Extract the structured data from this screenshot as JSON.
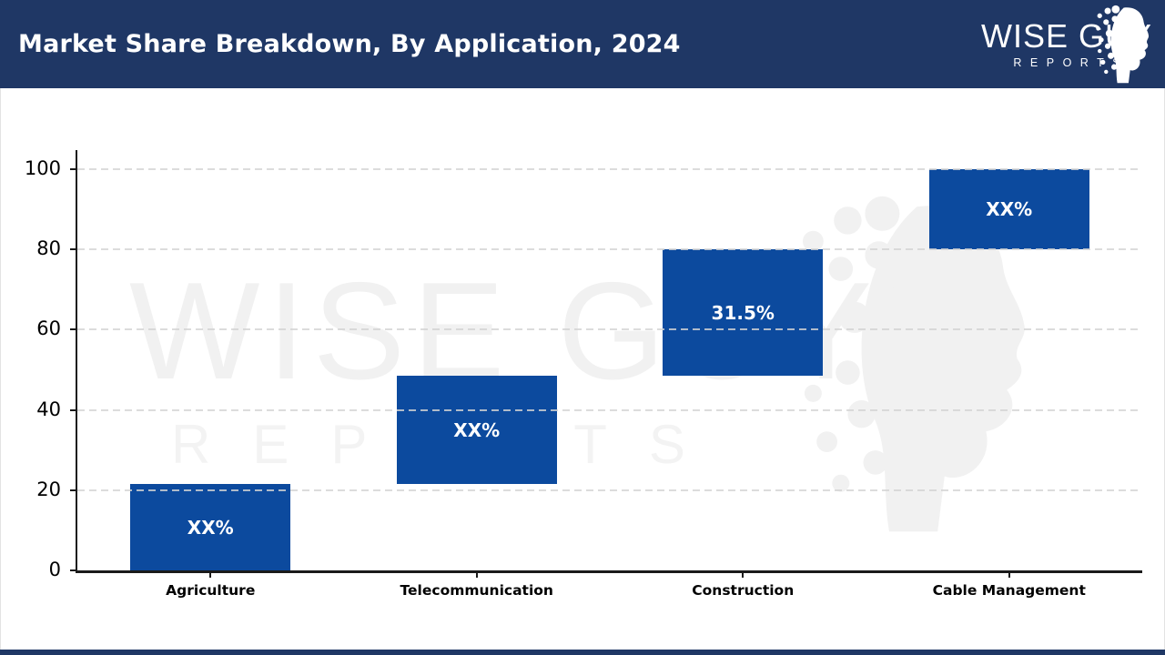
{
  "header": {
    "title": "Market Share Breakdown, By Application, 2024",
    "logo": {
      "line1": "WISE GUY",
      "line2": "REPORTS"
    },
    "bg_color": "#1f3765"
  },
  "watermark": {
    "line1": "WISE GUY",
    "line2": "REPORTS"
  },
  "chart_data": {
    "type": "bar",
    "subtype": "waterfall",
    "title": "Market Share Breakdown, By Application, 2024",
    "categories": [
      "Agriculture",
      "Telecommunication",
      "Construction",
      "Cable Management"
    ],
    "bars": [
      {
        "category": "Agriculture",
        "start": 0,
        "end": 21.5,
        "value": 21.5,
        "label": "XX%"
      },
      {
        "category": "Telecommunication",
        "start": 21.5,
        "end": 48.5,
        "value": 27,
        "label": "XX%"
      },
      {
        "category": "Construction",
        "start": 48.5,
        "end": 80,
        "value": 31.5,
        "label": "31.5%"
      },
      {
        "category": "Cable Management",
        "start": 80,
        "end": 100,
        "value": 20,
        "label": "XX%"
      }
    ],
    "ylim": [
      0,
      100
    ],
    "yticks": [
      0,
      20,
      40,
      60,
      80,
      100
    ],
    "xlabel": "",
    "ylabel": "",
    "grid": "horizontal-dashed-over-bars",
    "legend": "none",
    "bar_color": "#0c4a9e",
    "bar_label_color": "#ffffff",
    "axis_color": "#1a1a1a",
    "grid_color": "#d4d4d4"
  },
  "footer": {
    "bg_color": "#1f3765"
  }
}
